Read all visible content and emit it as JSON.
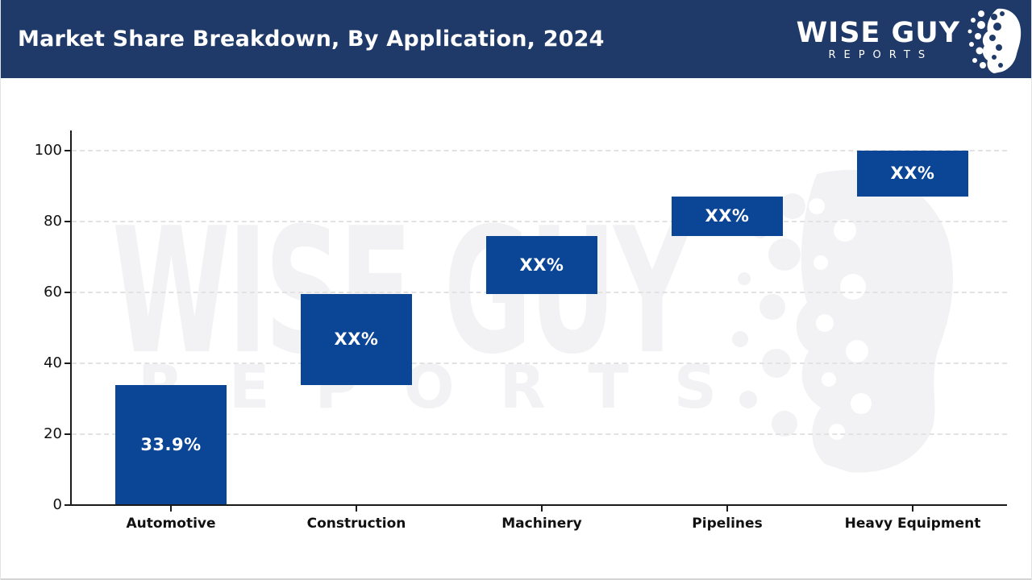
{
  "header": {
    "title": "Market Share Breakdown, By Application, 2024",
    "logo": {
      "main": "WISE GUY",
      "sub": "REPORTS"
    }
  },
  "watermark": {
    "main": "WISE GUY",
    "sub": "REPORTS"
  },
  "colors": {
    "header_bg": "#1f3a68",
    "bar": "#0b4596",
    "grid": "#e2e2e2",
    "watermark": "#f2f2f4",
    "axis": "#1a1a1a",
    "label_text": "#111111",
    "bar_label_text": "#ffffff"
  },
  "chart_data": {
    "type": "bar",
    "subtype": "waterfall-floating",
    "title": "Market Share Breakdown, By Application, 2024",
    "xlabel": "",
    "ylabel": "",
    "categories": [
      "Automotive",
      "Construction",
      "Machinery",
      "Pipelines",
      "Heavy Equipment"
    ],
    "segments": [
      {
        "category": "Automotive",
        "start": 0,
        "end": 33.9,
        "label": "33.9%"
      },
      {
        "category": "Construction",
        "start": 33.9,
        "end": 59.6,
        "label": "XX%"
      },
      {
        "category": "Machinery",
        "start": 59.6,
        "end": 76.0,
        "label": "XX%"
      },
      {
        "category": "Pipelines",
        "start": 76.0,
        "end": 87.1,
        "label": "XX%"
      },
      {
        "category": "Heavy Equipment",
        "start": 87.1,
        "end": 100,
        "label": "XX%"
      }
    ],
    "ylim": [
      0,
      100
    ],
    "yticks": [
      0,
      20,
      40,
      60,
      80,
      100
    ],
    "grid": "horizontal-dashed",
    "legend": "none"
  }
}
